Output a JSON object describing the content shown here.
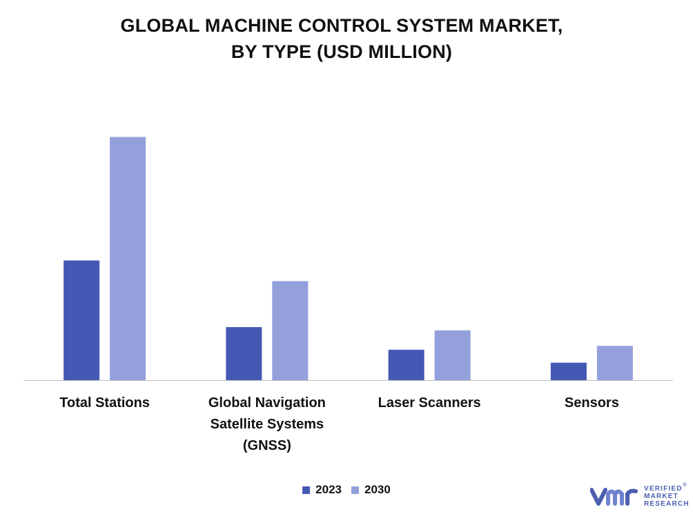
{
  "chart_data": {
    "type": "bar",
    "title_lines": [
      "GLOBAL MACHINE CONTROL SYSTEM MARKET,",
      "BY TYPE (USD MILLION)"
    ],
    "categories": [
      "Total Stations",
      "Global Navigation Satellite Systems (GNSS)",
      "Laser Scanners",
      "Sensors"
    ],
    "category_label_lines": [
      [
        "Total Stations"
      ],
      [
        "Global Navigation",
        "Satellite Systems",
        "(GNSS)"
      ],
      [
        "Laser Scanners"
      ],
      [
        "Sensors"
      ]
    ],
    "series": [
      {
        "name": "2023",
        "color": "#4458b4",
        "values": [
          185,
          82,
          47,
          27
        ]
      },
      {
        "name": "2030",
        "color": "#94a0dc",
        "values": [
          376,
          153,
          77,
          53
        ]
      }
    ],
    "ylim": [
      0,
      400
    ],
    "y_axis_visible": false,
    "grid": false,
    "legend_position": "bottom-center"
  },
  "logo": {
    "name": "Verified Market Research",
    "lines": [
      "VERIFIED",
      "MARKET",
      "RESEARCH"
    ],
    "registered_mark": "®",
    "color": "#4b5fb0"
  }
}
